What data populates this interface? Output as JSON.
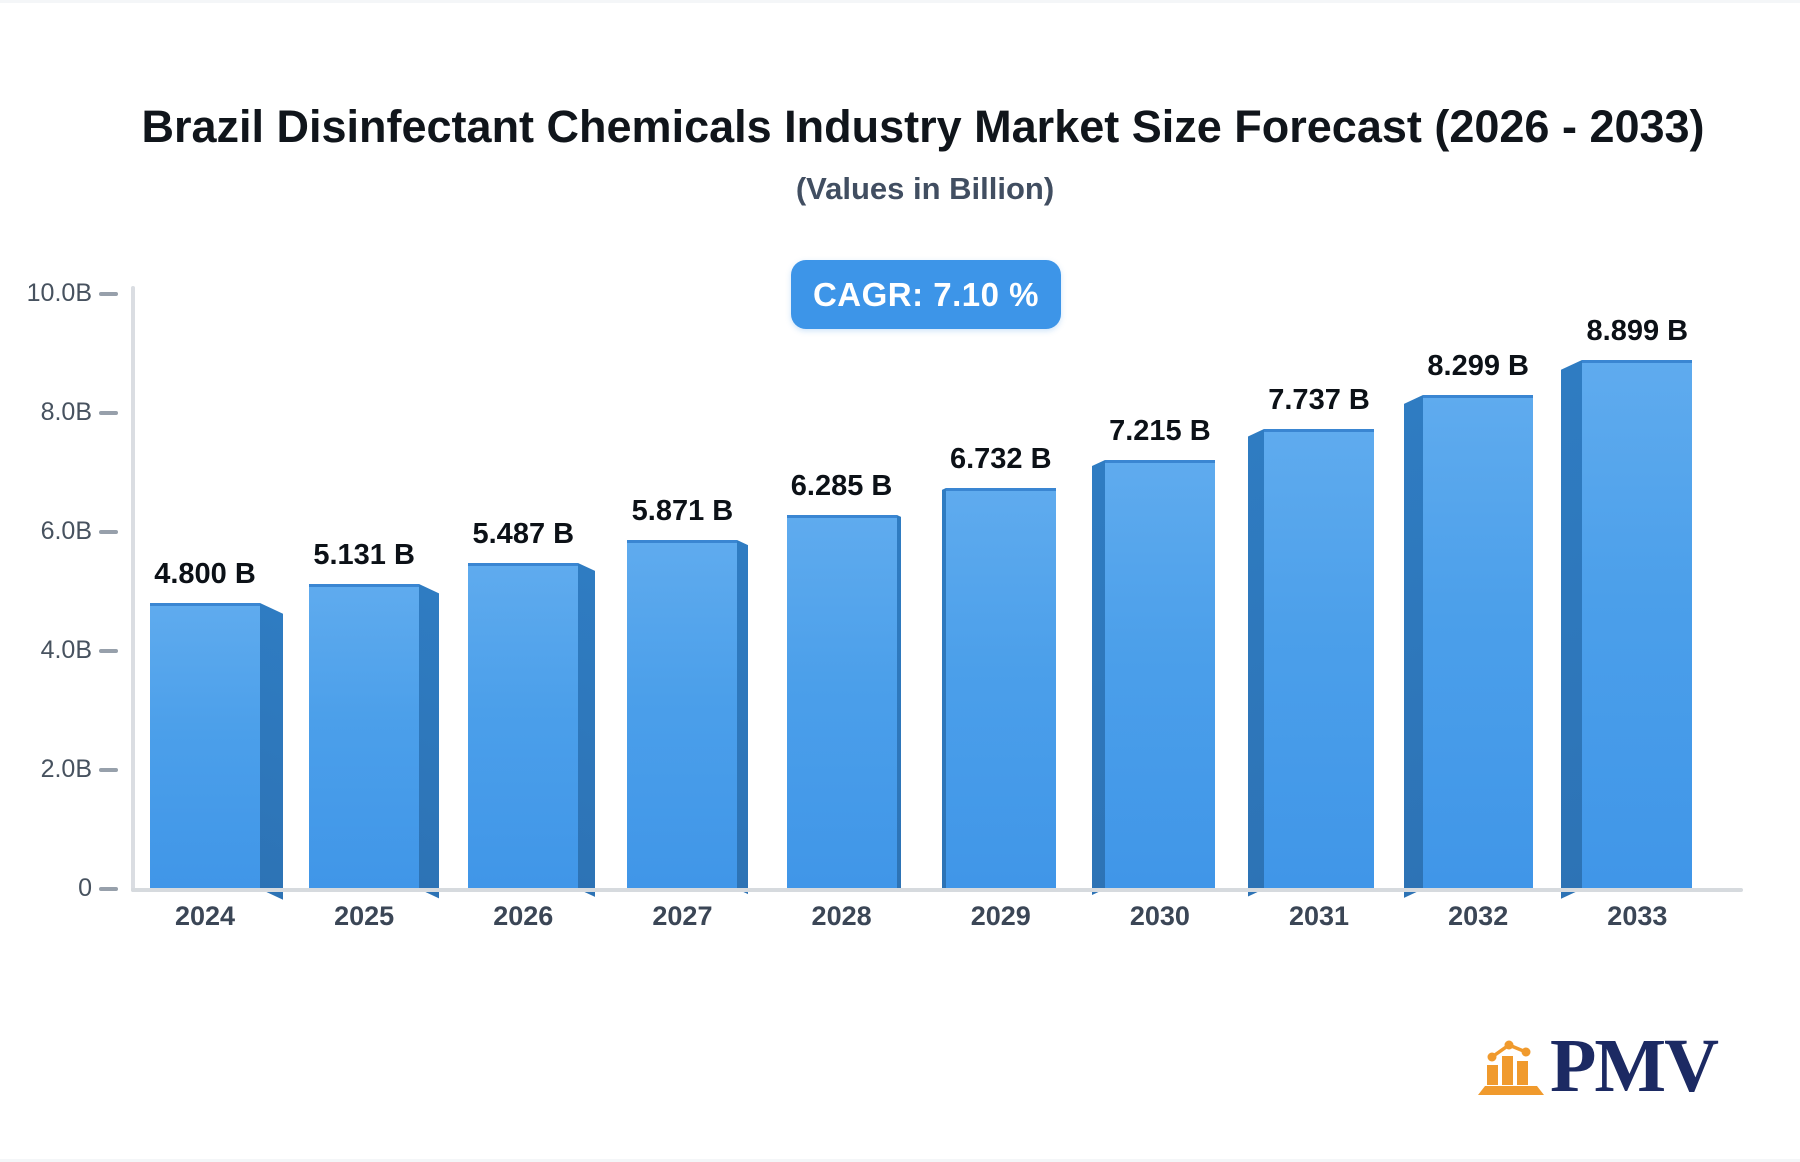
{
  "title": "Brazil Disinfectant Chemicals Industry Market Size Forecast (2026 - 2033)",
  "subtitle": "(Values in Billion)",
  "cagr_label": "CAGR: 7.10 %",
  "logo": {
    "text": "PMV",
    "icon": "bar-chart-logo-icon"
  },
  "colors": {
    "accent_blue": "#3d95e8",
    "bar_face_top": "#5fabee",
    "bar_face_bottom": "#4096e8",
    "bar_side": "#2d73b5",
    "axis_line": "#d6dade",
    "tick": "#97a0ab",
    "logo_orange": "#f09a2d",
    "logo_navy": "#1c2a63"
  },
  "chart_data": {
    "type": "bar",
    "title": "Brazil Disinfectant Chemicals Industry Market Size Forecast (2026 - 2033)",
    "subtitle": "(Values in Billion)",
    "xlabel": "",
    "ylabel": "",
    "categories": [
      "2024",
      "2025",
      "2026",
      "2027",
      "2028",
      "2029",
      "2030",
      "2031",
      "2032",
      "2033"
    ],
    "values": [
      4.8,
      5.131,
      5.487,
      5.871,
      6.285,
      6.732,
      7.215,
      7.737,
      8.299,
      8.899
    ],
    "bar_labels": [
      "4.800 B",
      "5.131 B",
      "5.487 B",
      "5.871 B",
      "6.285 B",
      "6.732 B",
      "7.215 B",
      "7.737 B",
      "8.299 B",
      "8.899 B"
    ],
    "y_ticks": [
      {
        "label": "10.0B",
        "value": 10
      },
      {
        "label": "8.0B",
        "value": 8
      },
      {
        "label": "6.0B",
        "value": 6
      },
      {
        "label": "4.0B",
        "value": 4
      },
      {
        "label": "2.0B",
        "value": 2
      },
      {
        "label": "0",
        "value": 0
      }
    ],
    "ylim": [
      0,
      10
    ],
    "grid": false,
    "legend": false,
    "annotation": "CAGR: 7.10 %"
  }
}
